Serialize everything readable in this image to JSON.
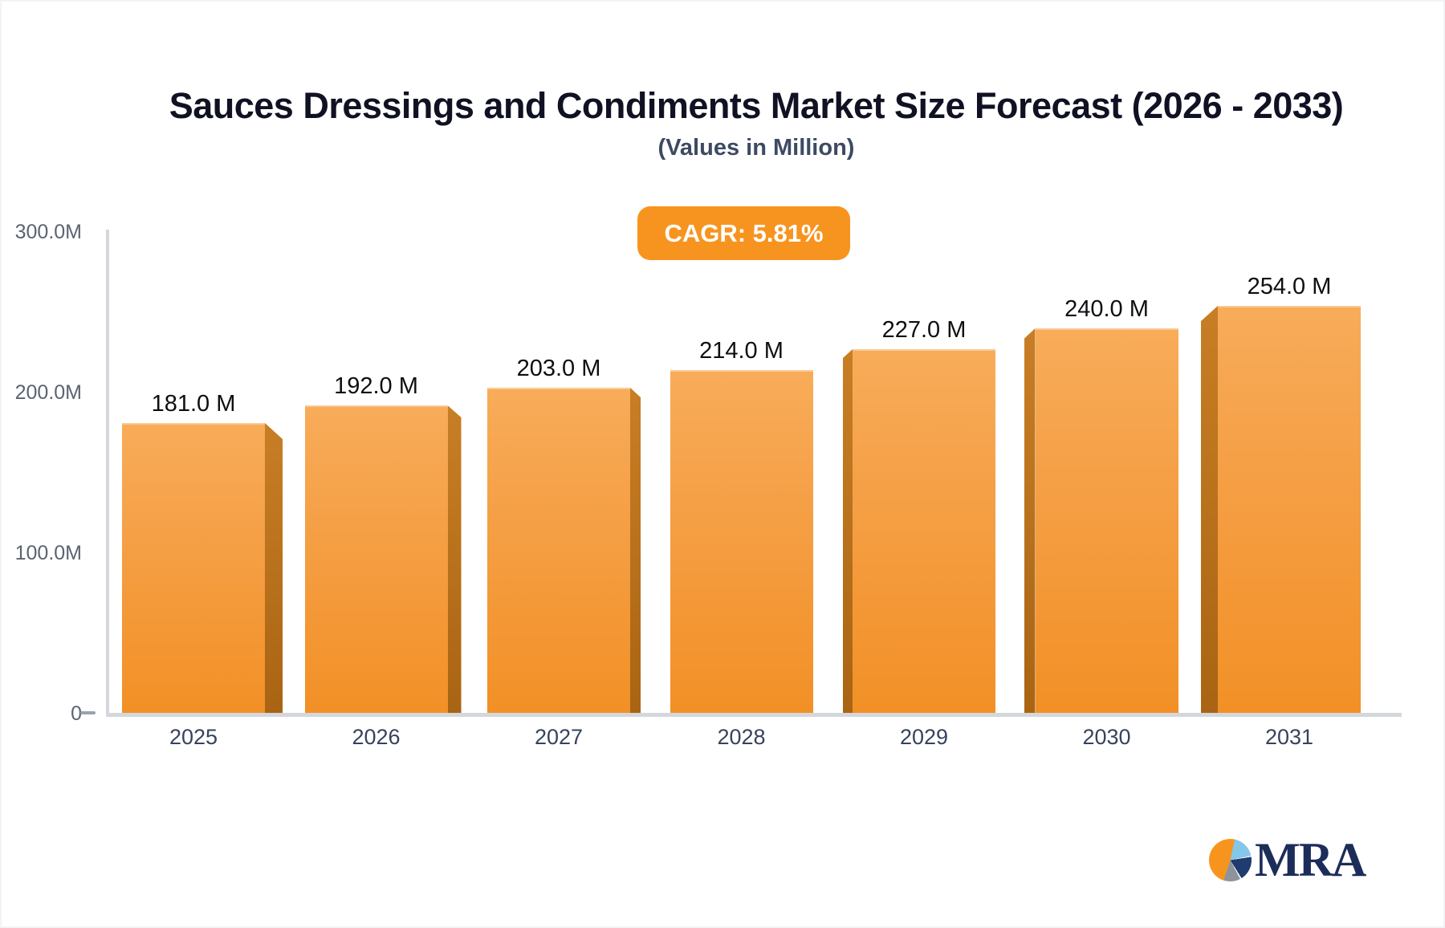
{
  "title": "Sauces Dressings and Condiments Market Size Forecast (2026 - 2033)",
  "subtitle": "(Values in Million)",
  "badge": {
    "label": "CAGR: 5.81%",
    "bg": "#f7941f",
    "text_color": "#ffffff"
  },
  "logo": {
    "text": "MRA",
    "icon": "pie-chart-icon"
  },
  "chart_data": {
    "type": "bar",
    "title": "Sauces Dressings and Condiments Market Size Forecast (2026 - 2033)",
    "subtitle": "(Values in Million)",
    "unit": "Million",
    "cagr": "5.81%",
    "categories": [
      "2025",
      "2026",
      "2027",
      "2028",
      "2029",
      "2030",
      "2031"
    ],
    "values": [
      181.0,
      192.0,
      203.0,
      214.0,
      227.0,
      240.0,
      254.0
    ],
    "value_labels": [
      "181.0 M",
      "192.0 M",
      "203.0 M",
      "214.0 M",
      "227.0 M",
      "240.0 M",
      "254.0 M"
    ],
    "ylim": [
      0,
      300
    ],
    "ytick_labels": [
      "300.0M",
      "200.0M",
      "100.0M",
      "0"
    ],
    "ytick_values": [
      300,
      200,
      100,
      0
    ],
    "grid": false,
    "legend": false,
    "bar_colors": {
      "face_top": "#f8ac59",
      "face_bottom": "#f29026",
      "side_top": "#c87e25",
      "side_bottom": "#a96413"
    },
    "axis_color": "#d4d7dc",
    "label_color": "#0d0f12",
    "xtick_color": "#36435c",
    "ytick_color": "#5a6472"
  }
}
